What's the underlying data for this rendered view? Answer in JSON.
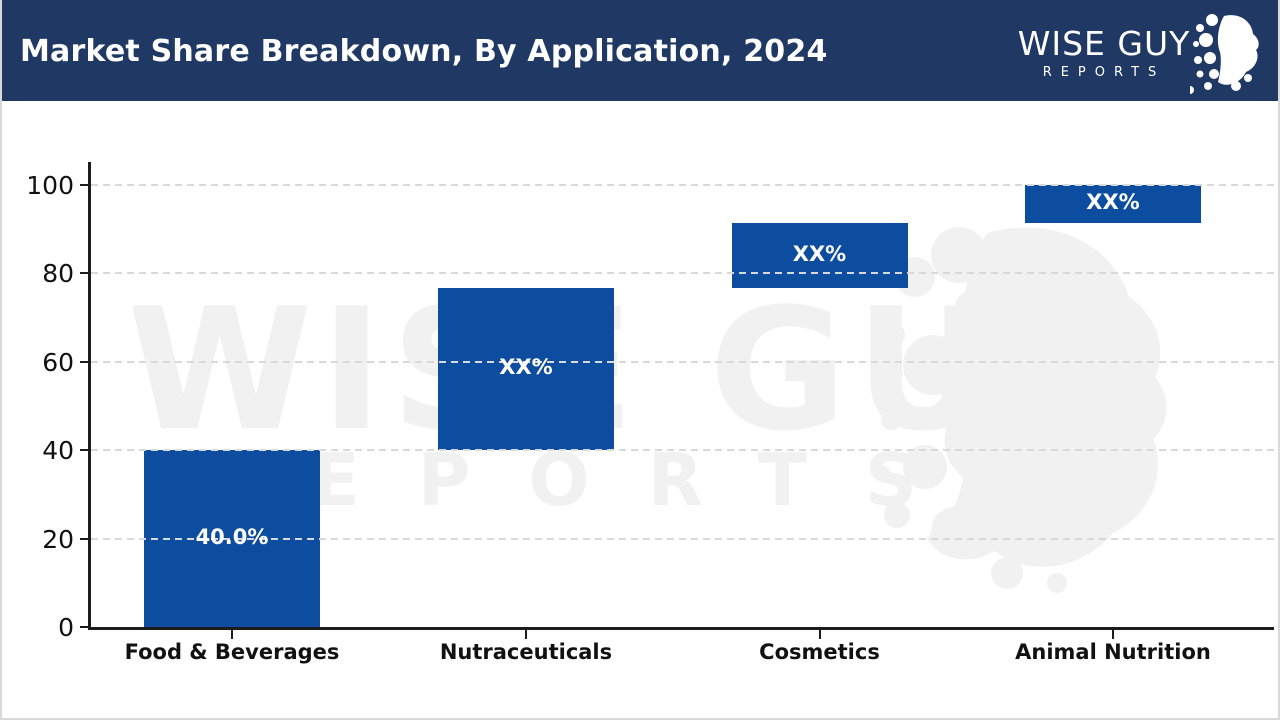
{
  "header": {
    "title": "Market Share Breakdown, By Application, 2024",
    "background_color": "#1f3864",
    "logo": {
      "line1": "WISE GUY",
      "line2": "REPORTS"
    }
  },
  "watermark": {
    "line1": "WISE GUY",
    "line2": "REPORTS"
  },
  "chart_data": {
    "type": "bar",
    "subtype": "waterfall",
    "title": "Market Share Breakdown, By Application, 2024",
    "xlabel": "",
    "ylabel": "",
    "categories": [
      "Food & Beverages",
      "Nutraceuticals",
      "Cosmetics",
      "Animal Nutrition"
    ],
    "segments": [
      {
        "category": "Food & Beverages",
        "start": 0,
        "end": 40,
        "label": "40.0%"
      },
      {
        "category": "Nutraceuticals",
        "start": 40,
        "end": 76.5,
        "label": "XX%"
      },
      {
        "category": "Cosmetics",
        "start": 76.5,
        "end": 91.3,
        "label": "XX%"
      },
      {
        "category": "Animal Nutrition",
        "start": 91.3,
        "end": 100,
        "label": "XX%"
      }
    ],
    "yticks": [
      0,
      20,
      40,
      60,
      80,
      100
    ],
    "ylim": [
      0,
      105
    ],
    "grid": "horizontal dashed, drawn over bars",
    "legend": "none",
    "bar_color": "#0d4da0",
    "bar_label_color": "#ffffff",
    "axis_color": "#1c1c1c",
    "gridline_color": "#d9d9d9",
    "background_color": "#ffffff"
  }
}
